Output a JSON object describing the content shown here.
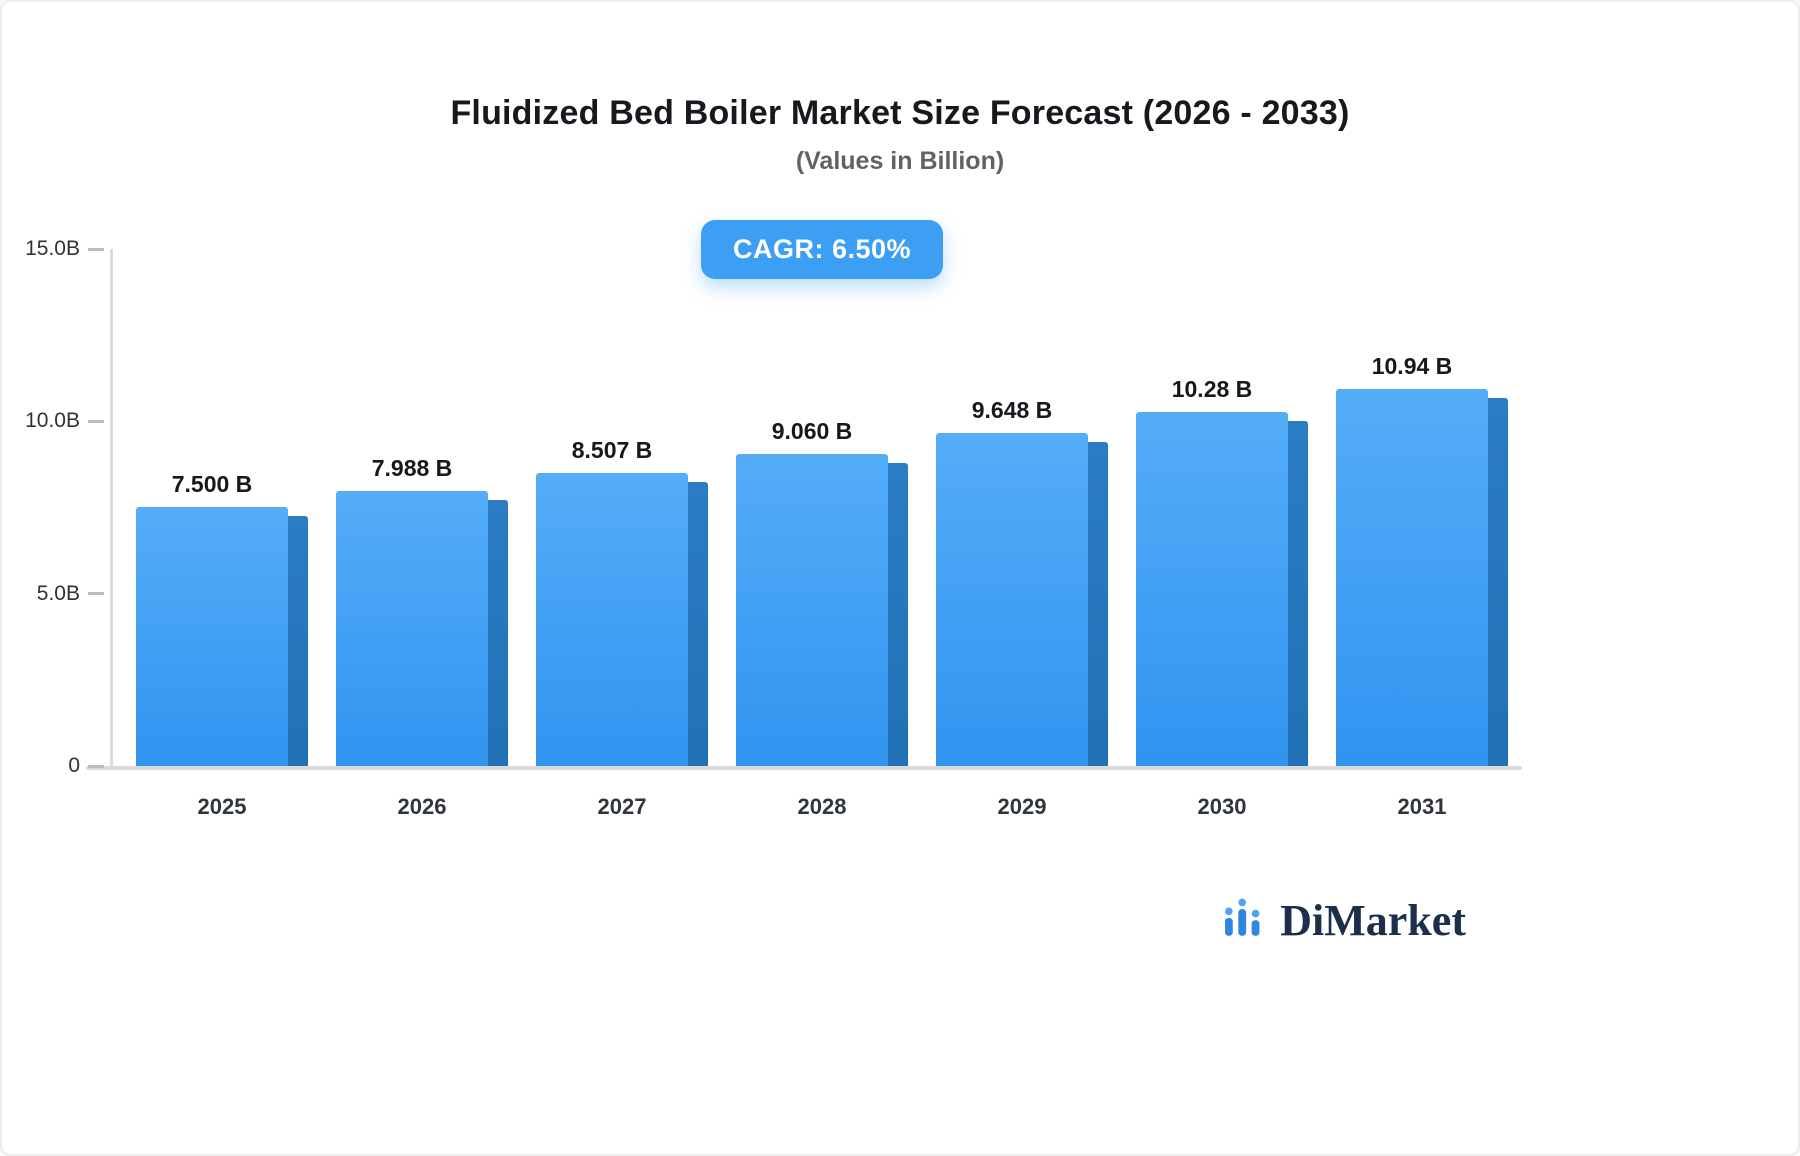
{
  "chart_data": {
    "type": "bar",
    "title": "Fluidized Bed Boiler Market Size Forecast (2026 - 2033)",
    "subtitle": "(Values in Billion)",
    "cagr_label": "CAGR: 6.50%",
    "categories": [
      "2025",
      "2026",
      "2027",
      "2028",
      "2029",
      "2030",
      "2031"
    ],
    "values": [
      7.5,
      7.988,
      8.507,
      9.06,
      9.648,
      10.28,
      10.94
    ],
    "value_labels": [
      "7.500 B",
      "7.988 B",
      "8.507 B",
      "9.060 B",
      "9.648 B",
      "10.28 B",
      "10.94 B"
    ],
    "ylim": [
      0,
      15
    ],
    "yticks": [
      {
        "value": 15,
        "label": "15.0B"
      },
      {
        "value": 10,
        "label": "10.0B"
      },
      {
        "value": 5,
        "label": "5.0B"
      },
      {
        "value": 0,
        "label": "0"
      }
    ],
    "grid": false,
    "legend": "none",
    "bar_color": "#3da0f4",
    "bar_side_color": "#2271b6",
    "accent_color": "#3d9ff3"
  },
  "branding": {
    "logo_text": "DiMarket",
    "logo_icon": "bar-chart-logo-icon",
    "logo_color": "#1c2e4a",
    "icon_color": "#2e86de"
  }
}
